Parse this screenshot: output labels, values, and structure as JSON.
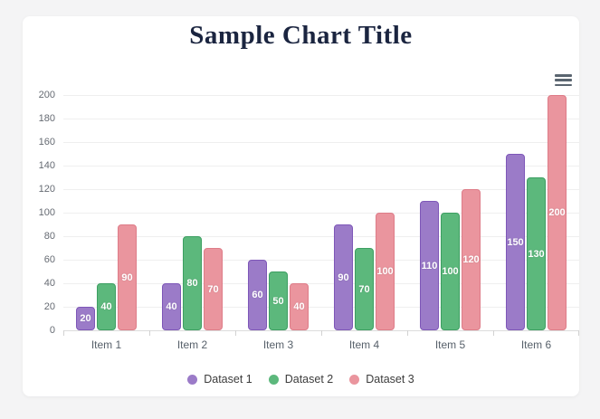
{
  "page": {
    "background_color": "#f4f4f5",
    "card_background_color": "#ffffff"
  },
  "toolbar": {
    "menu_icon": "hamburger-menu-icon",
    "menu_icon_color": "#5a6570"
  },
  "chart_data": {
    "type": "bar",
    "title": "Sample Chart Title",
    "title_color": "#1b2540",
    "categories": [
      "Item 1",
      "Item 2",
      "Item 3",
      "Item 4",
      "Item 5",
      "Item 6"
    ],
    "series": [
      {
        "name": "Dataset 1",
        "color": "#9b7bc8",
        "border_color": "#7e57b8",
        "values": [
          20,
          40,
          60,
          90,
          110,
          150
        ]
      },
      {
        "name": "Dataset 2",
        "color": "#5cb87c",
        "border_color": "#3d9f62",
        "values": [
          40,
          80,
          50,
          70,
          100,
          130
        ]
      },
      {
        "name": "Dataset 3",
        "color": "#ea959e",
        "border_color": "#de7c88",
        "values": [
          90,
          70,
          40,
          100,
          120,
          200
        ]
      }
    ],
    "ylim": [
      0,
      200
    ],
    "ytick_step": 20,
    "ytick_labels": [
      "0",
      "20",
      "40",
      "60",
      "80",
      "100",
      "120",
      "140",
      "160",
      "180",
      "200"
    ],
    "grid": true,
    "legend_position": "bottom",
    "value_labels": {
      "color": "#ffffff",
      "position": "center"
    },
    "axis": {
      "tick_label_color": "#666b73",
      "category_label_color": "#57606a",
      "grid_color": "#efefef",
      "baseline_color": "#dcdcdc"
    }
  }
}
